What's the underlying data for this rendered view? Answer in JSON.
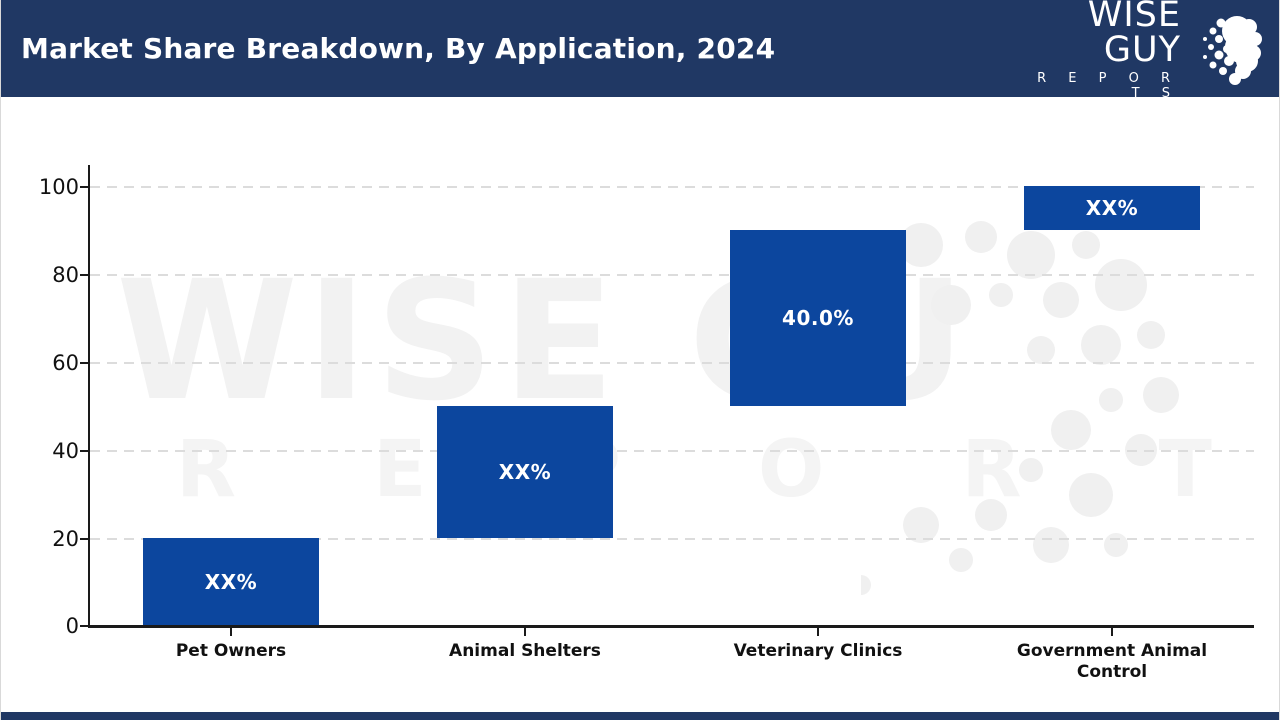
{
  "header": {
    "title": "Market Share Breakdown, By Application, 2024",
    "logo": {
      "primary": "WISE GUY",
      "secondary": "R E P O R T S"
    }
  },
  "watermark": {
    "primary": "WISE GU",
    "secondary": "R E P O R T S"
  },
  "colors": {
    "header_bg": "#203864",
    "footer_bg": "#203864",
    "bar": "#0c469e",
    "bar_label": "#ffffff",
    "grid": "#dcdcdc",
    "axis": "#1a1a1a",
    "tick_text": "#111111"
  },
  "chart_data": {
    "type": "bar",
    "variant": "floating-segment-waterfall",
    "title": "Market Share Breakdown, By Application, 2024",
    "categories": [
      "Pet Owners",
      "Animal Shelters",
      "Veterinary Clinics",
      "Government Animal Control"
    ],
    "segments": [
      {
        "category": "Pet Owners",
        "from": 0,
        "to": 20,
        "label": "XX%"
      },
      {
        "category": "Animal Shelters",
        "from": 20,
        "to": 50,
        "label": "XX%"
      },
      {
        "category": "Veterinary Clinics",
        "from": 50,
        "to": 90,
        "label": "40.0%"
      },
      {
        "category": "Government Animal Control",
        "from": 90,
        "to": 100,
        "label": "XX%"
      }
    ],
    "ylim": [
      0,
      100
    ],
    "yticks": [
      0,
      20,
      40,
      60,
      80,
      100
    ],
    "xlabel": "",
    "ylabel": "",
    "grid": "horizontal-dashed",
    "legend": "none"
  }
}
